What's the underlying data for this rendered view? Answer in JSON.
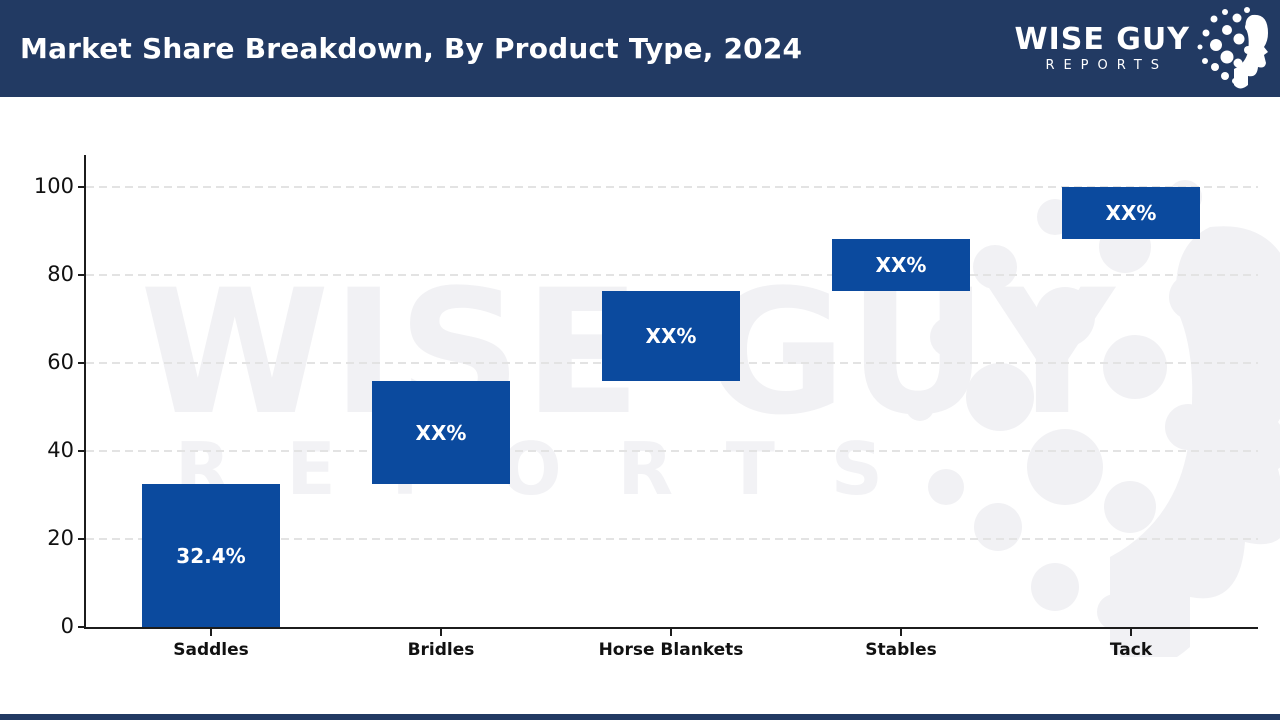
{
  "header": {
    "title": "Market Share Breakdown, By Product Type, 2024",
    "logo": {
      "line1": "WISE GUY",
      "line2": "REPORTS",
      "head_icon": "dotted-head-profile"
    }
  },
  "watermark": {
    "line1": "WISE GUY",
    "line2": "REPORTS",
    "face_icon": "dotted-head-profile"
  },
  "colors": {
    "header_bg": "#223a63",
    "footer_bg": "#223a63",
    "bar": "#0b4a9e",
    "bar_label": "#ffffff",
    "grid": "#e3e3e3",
    "axis": "#1c1c1c",
    "watermark": "#f1f1f4"
  },
  "chart_data": {
    "type": "bar",
    "subtype": "waterfall",
    "title": "Market Share Breakdown, By Product Type, 2024",
    "categories": [
      "Saddles",
      "Bridles",
      "Horse Blankets",
      "Stables",
      "Tack"
    ],
    "segments": [
      {
        "category": "Saddles",
        "label": "32.4%",
        "start": 0,
        "end": 32.4
      },
      {
        "category": "Bridles",
        "label": "XX%",
        "start": 32.4,
        "end": 55.8
      },
      {
        "category": "Horse Blankets",
        "label": "XX%",
        "start": 55.8,
        "end": 76.4
      },
      {
        "category": "Stables",
        "label": "XX%",
        "start": 76.4,
        "end": 88.2
      },
      {
        "category": "Tack",
        "label": "XX%",
        "start": 88.2,
        "end": 100
      }
    ],
    "xlabel": "",
    "ylabel": "",
    "yticks": [
      0,
      20,
      40,
      60,
      80,
      100
    ],
    "ylim": [
      0,
      105
    ],
    "grid": "horizontal-dashed",
    "legend": "none"
  }
}
